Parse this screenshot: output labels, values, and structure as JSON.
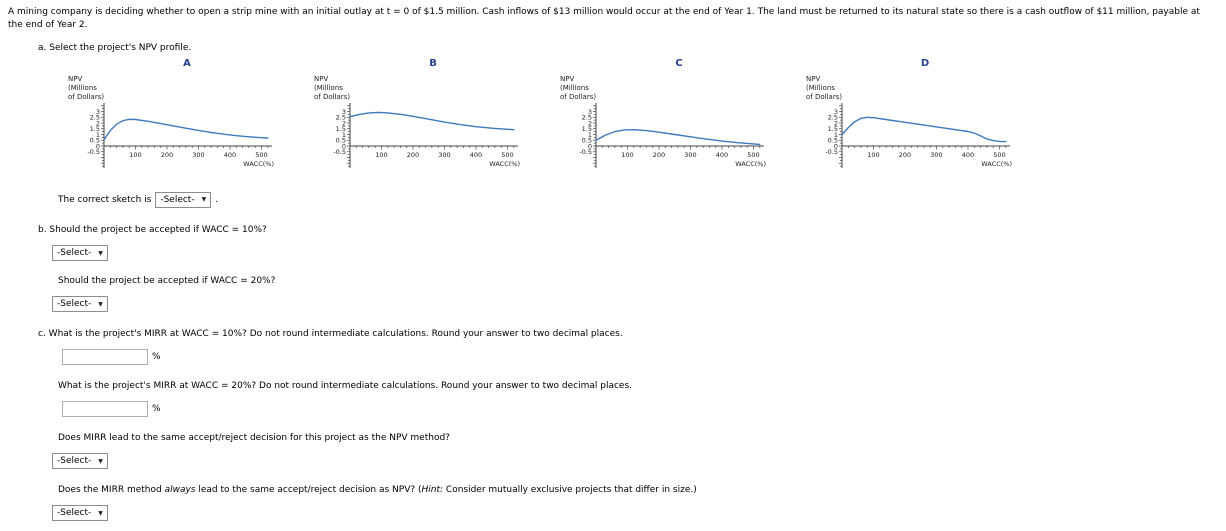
{
  "problem": {
    "line1": "A mining company is deciding whether to open a strip mine with an initial outlay at t = 0 of $1.5 million. Cash inflows of $13 million would occur at the end of Year 1. The land must be returned to its natural state so there is a cash outflow of $11 million, payable at",
    "line2": "the end of Year 2."
  },
  "section_a": {
    "prompt": "a. Select the project's NPV profile.",
    "correct_prefix": "The correct sketch is",
    "correct_suffix": ".",
    "select_value": "-Select-"
  },
  "section_b": {
    "q1": "b. Should the project be accepted if WACC = 10%?",
    "q1_select": "-Select-",
    "q2": "Should the project be accepted if WACC = 20%?",
    "q2_select": "-Select-"
  },
  "section_c": {
    "q1": "c. What is the project's MIRR at WACC = 10%? Do not round intermediate calculations. Round your answer to two decimal places.",
    "q1_input_value": "",
    "q1_unit": "%",
    "q2": "What is the project's MIRR at WACC = 20%? Do not round intermediate calculations. Round your answer to two decimal places.",
    "q2_input_value": "",
    "q2_unit": "%",
    "q3": "Does MIRR lead to the same accept/reject decision for this project as the NPV method?",
    "q3_select": "-Select-",
    "q4_part1": "Does the MIRR method ",
    "q4_italic1": "always",
    "q4_part2": " lead to the same accept/reject decision as NPV? (",
    "q4_italic2": "Hint:",
    "q4_part3": " Consider mutually exclusive projects that differ in size.)",
    "q4_select": "-Select-"
  },
  "chart_data": [
    {
      "type": "line",
      "title": "A",
      "xlabel": "WACC(%)",
      "ylabel": "NPV (Millions of Dollars)",
      "ylabel_lines": [
        "NPV",
        "(Millions",
        "of Dollars)"
      ],
      "xticks": [
        100,
        200,
        300,
        400,
        500
      ],
      "yticks": [
        3,
        2.5,
        2,
        1.5,
        1,
        0.5,
        0,
        -0.5
      ],
      "xlim": [
        0,
        560
      ],
      "ylim": [
        -0.5,
        3
      ],
      "line_color": "#3e79c0",
      "series": [
        {
          "name": "NPV profile",
          "x": [
            0,
            20,
            40,
            60,
            80,
            100,
            140,
            180,
            220,
            260,
            300,
            340,
            380,
            420,
            460,
            500,
            520
          ],
          "y": [
            0.55,
            1.35,
            1.9,
            2.2,
            2.32,
            2.3,
            2.15,
            1.95,
            1.75,
            1.55,
            1.36,
            1.18,
            1.03,
            0.9,
            0.8,
            0.72,
            0.7
          ]
        }
      ]
    },
    {
      "type": "line",
      "title": "B",
      "xlabel": "WACC(%)",
      "ylabel": "NPV (Millions of Dollars)",
      "ylabel_lines": [
        "NPV",
        "(Millions",
        "of Dollars)"
      ],
      "xticks": [
        100,
        200,
        300,
        400,
        500
      ],
      "yticks": [
        3,
        2.5,
        2,
        1.5,
        1,
        0.5,
        0,
        -0.5
      ],
      "xlim": [
        0,
        560
      ],
      "ylim": [
        -0.5,
        3
      ],
      "line_color": "#3e79c0",
      "series": [
        {
          "name": "NPV profile",
          "x": [
            0,
            30,
            60,
            90,
            120,
            160,
            200,
            250,
            300,
            350,
            400,
            450,
            500,
            520
          ],
          "y": [
            2.55,
            2.75,
            2.88,
            2.92,
            2.88,
            2.76,
            2.58,
            2.33,
            2.08,
            1.86,
            1.68,
            1.55,
            1.45,
            1.42
          ]
        }
      ]
    },
    {
      "type": "line",
      "title": "C",
      "xlabel": "WACC(%)",
      "ylabel": "NPV (Millions of Dollars)",
      "ylabel_lines": [
        "NPV",
        "(Millions",
        "of Dollars)"
      ],
      "xticks": [
        100,
        200,
        300,
        400,
        500
      ],
      "yticks": [
        3,
        2.5,
        2,
        1.5,
        1,
        0.5,
        0,
        -0.5
      ],
      "xlim": [
        0,
        560
      ],
      "ylim": [
        -0.5,
        3
      ],
      "line_color": "#3e79c0",
      "series": [
        {
          "name": "NPV profile",
          "x": [
            0,
            30,
            60,
            90,
            120,
            160,
            200,
            250,
            300,
            350,
            400,
            450,
            500,
            520
          ],
          "y": [
            0.5,
            0.95,
            1.25,
            1.4,
            1.42,
            1.34,
            1.2,
            1.0,
            0.8,
            0.6,
            0.43,
            0.29,
            0.18,
            0.14
          ]
        }
      ]
    },
    {
      "type": "line",
      "title": "D",
      "xlabel": "WACC(%)",
      "ylabel": "NPV (Millions of Dollars)",
      "ylabel_lines": [
        "NPV",
        "(Millions",
        "of Dollars)"
      ],
      "xticks": [
        100,
        200,
        300,
        400,
        500
      ],
      "yticks": [
        3,
        2.5,
        2,
        1.5,
        1,
        0.5,
        0,
        -0.5
      ],
      "xlim": [
        0,
        560
      ],
      "ylim": [
        -0.5,
        3
      ],
      "line_color": "#3e79c0",
      "series": [
        {
          "name": "NPV profile",
          "x": [
            0,
            20,
            40,
            60,
            80,
            100,
            150,
            200,
            250,
            300,
            350,
            400,
            420,
            440,
            460,
            480,
            500,
            520
          ],
          "y": [
            1.0,
            1.6,
            2.1,
            2.4,
            2.5,
            2.46,
            2.26,
            2.06,
            1.86,
            1.66,
            1.46,
            1.26,
            1.12,
            0.88,
            0.62,
            0.47,
            0.4,
            0.38
          ]
        }
      ]
    }
  ]
}
